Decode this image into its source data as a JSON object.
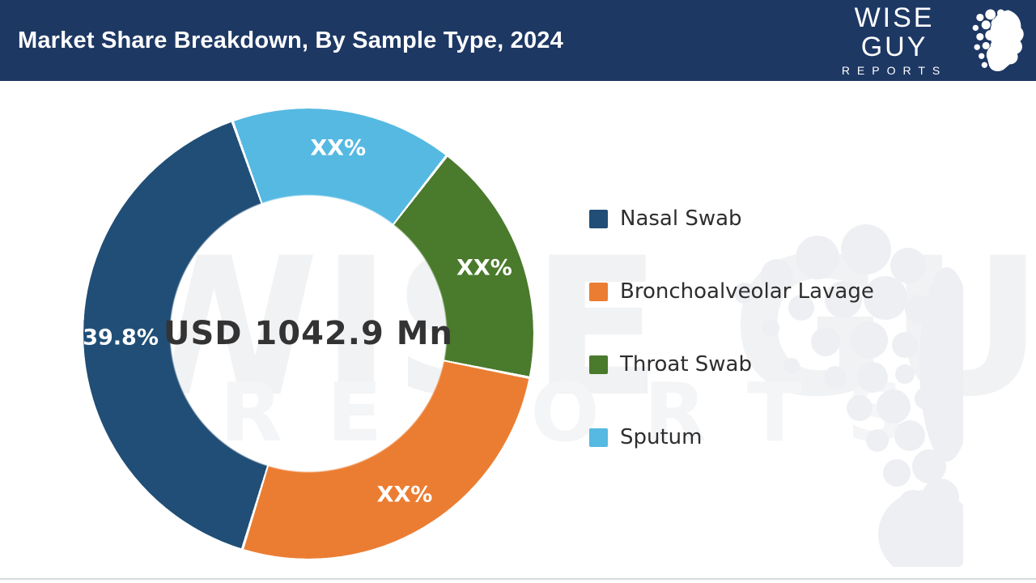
{
  "header": {
    "title": "Market Share Breakdown, By Sample Type, 2024",
    "background_color": "#1e3864",
    "logo": {
      "line1": "WISE GUY",
      "line2": "REPORTS"
    }
  },
  "watermark": {
    "big_text": "WISE GUY",
    "small_text": "REPORTS"
  },
  "chart_data": {
    "type": "pie",
    "subtype": "donut",
    "title": "Market Share Breakdown, By Sample Type, 2024",
    "center_label": "USD 1042.9 Mn",
    "legend_position": "right",
    "start_angle_deg_from_north": -19.7,
    "separator_deg": 0.7,
    "label_radius_px": 232,
    "segments": [
      {
        "label": "Sputum",
        "display_value": "XX%",
        "value_pct": 16.0,
        "color": "#55b9e2"
      },
      {
        "label": "Throat Swab",
        "display_value": "XX%",
        "value_pct": 17.6,
        "color": "#4a7a2c"
      },
      {
        "label": "Bronchoalveolar Lavage",
        "display_value": "XX%",
        "value_pct": 26.6,
        "color": "#eb7d32"
      },
      {
        "label": "Nasal Swab",
        "display_value": "39.8%",
        "value_pct": 39.8,
        "color": "#204e76"
      }
    ],
    "legend": [
      {
        "label": "Nasal Swab",
        "color": "#204e76"
      },
      {
        "label": "Bronchoalveolar Lavage",
        "color": "#eb7d32"
      },
      {
        "label": "Throat Swab",
        "color": "#4a7a2c"
      },
      {
        "label": "Sputum",
        "color": "#55b9e2"
      }
    ]
  }
}
